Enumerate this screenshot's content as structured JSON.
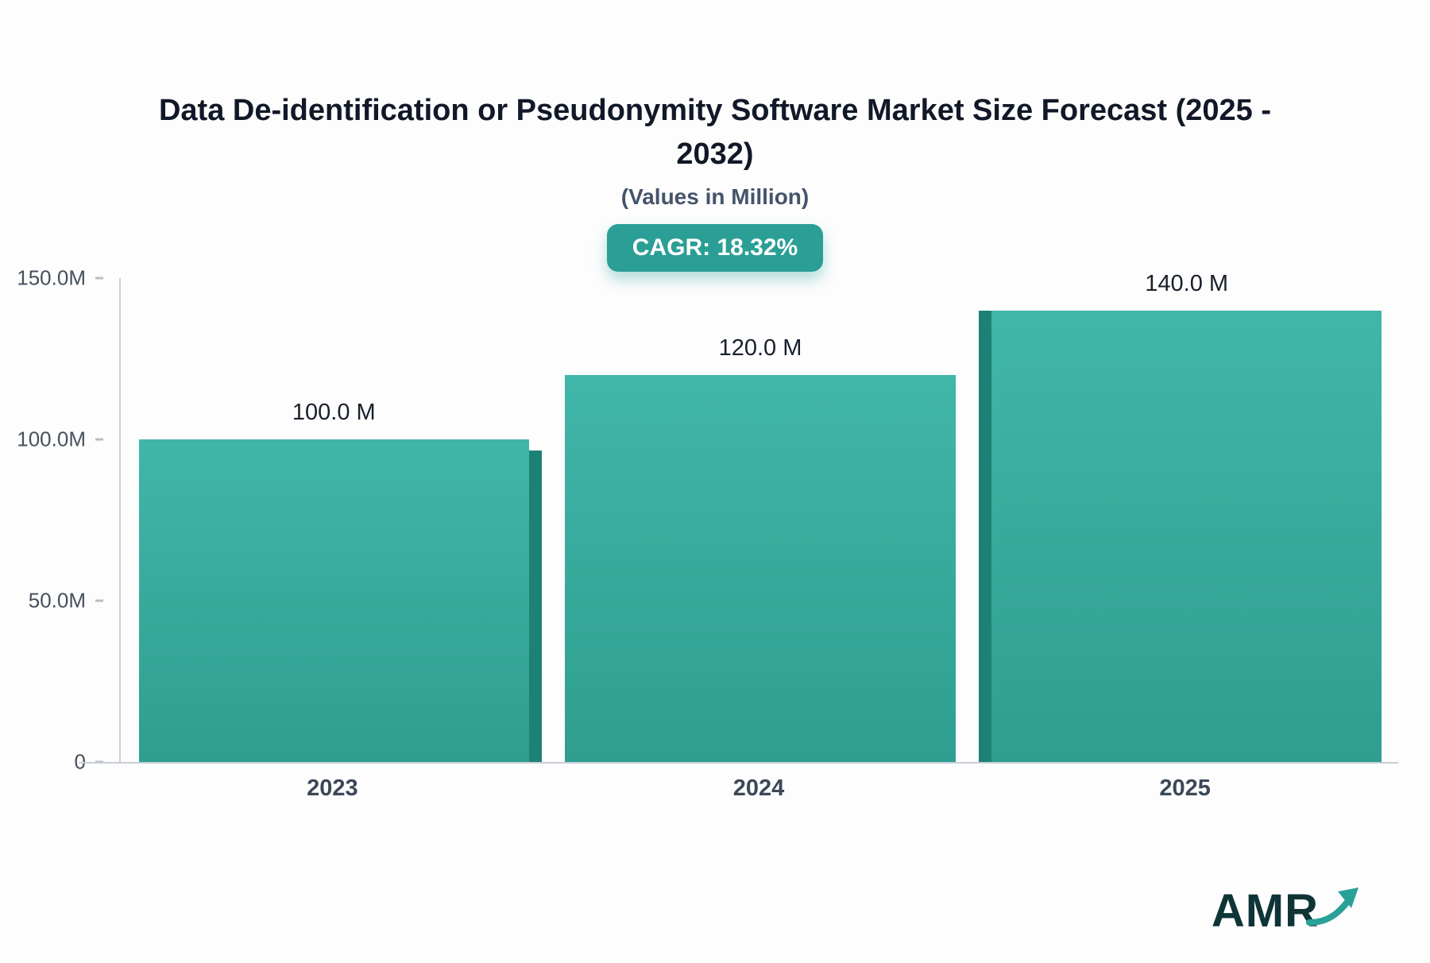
{
  "header": {
    "title": "Data De-identification or Pseudonymity Software Market Size Forecast (2025 - 2032)",
    "subtitle": "(Values in Million)",
    "cagr_badge": "CAGR: 18.32%"
  },
  "chart_data": {
    "type": "bar",
    "title": "Data De-identification or Pseudonymity Software Market Size Forecast (2025 - 2032)",
    "subtitle": "(Values in Million)",
    "categories": [
      "2023",
      "2024",
      "2025"
    ],
    "values": [
      100.0,
      120.0,
      140.0
    ],
    "value_labels": [
      "100.0 M",
      "120.0 M",
      "140.0 M"
    ],
    "unit": "Million",
    "ylim": [
      0,
      150
    ],
    "yticks": [
      150,
      100,
      50,
      0
    ],
    "ytick_labels": [
      "150.0M",
      "100.0M",
      "50.0M",
      "0"
    ],
    "legend": "none",
    "grid": "off",
    "colors": {
      "bar_top": "#40b6a9",
      "bar_bottom": "#2f9e90",
      "bar_side": "#1e8177",
      "badge_bg": "#2b9f96",
      "title_text": "#111827",
      "subtitle_text": "#44546a",
      "axis_line": "#c9cfd7"
    }
  },
  "logo": {
    "text": "AMR",
    "arrow_color": "#2aa198"
  }
}
